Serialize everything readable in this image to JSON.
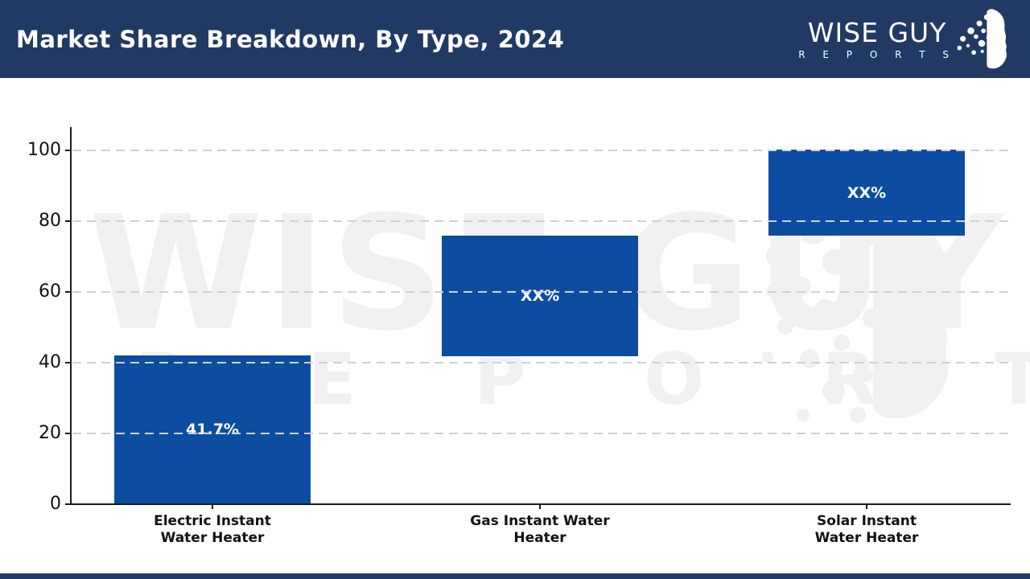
{
  "page": {
    "title": "Market Share Breakdown, By Type, 2024",
    "header_bg": "#213A64",
    "footer_bg": "#213A64",
    "accent_bar_color": "#0C4DA1"
  },
  "logo": {
    "line1": "WISE GUY",
    "line2": "R E P O R T S",
    "icon": "dotted-face-profile"
  },
  "watermark": {
    "line1": "WISE GUY",
    "line2": "R E P O R T S",
    "icon": "dotted-face-profile"
  },
  "chart_data": {
    "type": "bar",
    "subtype": "stacked-waterfall-segments",
    "title": "Market Share Breakdown, By Type, 2024",
    "xlabel": "",
    "ylabel": "",
    "ylim": [
      0,
      100
    ],
    "yticks": [
      0,
      20,
      40,
      60,
      80,
      100
    ],
    "grid": "horizontal-dashed",
    "legend": "none",
    "bar_color": "#0C4DA1",
    "categories": [
      "Electric Instant Water Heater",
      "Gas Instant Water Heater",
      "Solar Instant Water Heater"
    ],
    "bars": [
      {
        "category": "Electric Instant Water Heater",
        "label_lines": [
          "Electric Instant",
          "Water Heater"
        ],
        "start": 0,
        "end": 41.7,
        "value": 41.7,
        "data_label": "41.7%"
      },
      {
        "category": "Gas Instant Water Heater",
        "label_lines": [
          "Gas Instant Water",
          "Heater"
        ],
        "start": 41.7,
        "end": 75.7,
        "value": null,
        "data_label": "XX%"
      },
      {
        "category": "Solar Instant Water Heater",
        "label_lines": [
          "Solar Instant",
          "Water Heater"
        ],
        "start": 75.7,
        "end": 100,
        "value": null,
        "data_label": "XX%"
      }
    ]
  }
}
